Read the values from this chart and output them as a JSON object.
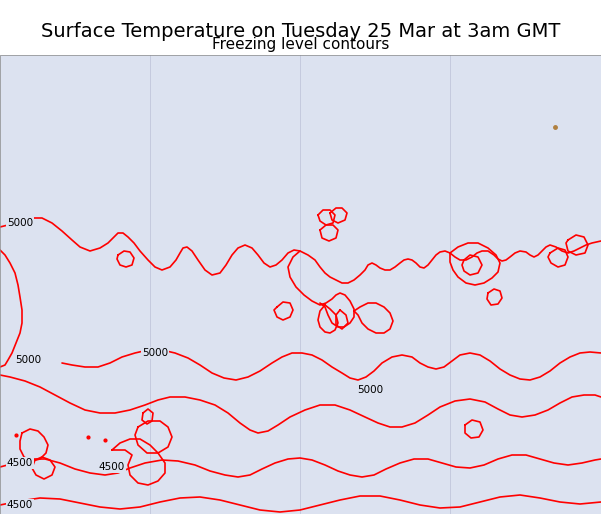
{
  "title": "Surface Temperature on Tuesday 25 Mar at 3am GMT",
  "subtitle": "Freezing level contours",
  "title_fontsize": 14,
  "subtitle_fontsize": 11,
  "bg_map": "#dce2f0",
  "contour_color": "#ff0000",
  "title_bg": "#ffffff",
  "grid_color": "#c5cade",
  "island_dot_color": "#b08040",
  "fig_width": 6.01,
  "fig_height": 5.14,
  "dpi": 100
}
